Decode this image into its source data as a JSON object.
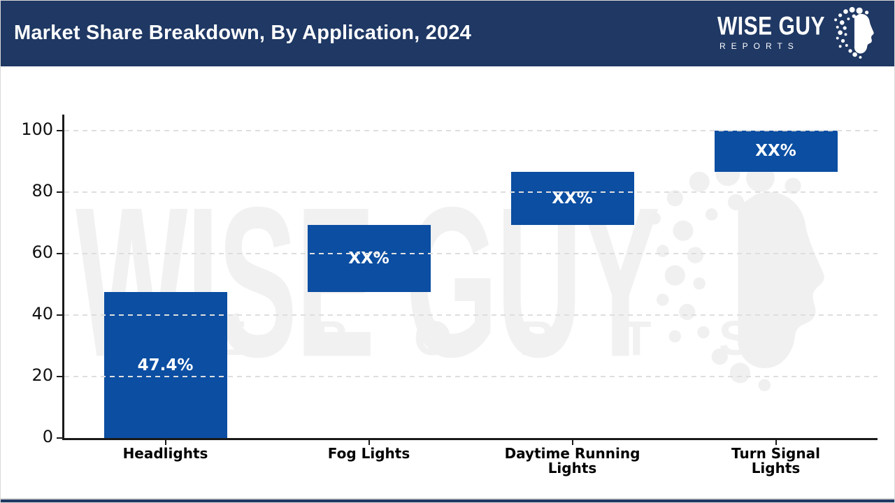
{
  "header": {
    "title": "Market Share Breakdown, By Application, 2024",
    "logo": {
      "name": "WISE GUY",
      "subname": "REPORTS"
    }
  },
  "watermark": {
    "name": "WISE GUY",
    "subname": "REPORTS"
  },
  "chart_data": {
    "type": "bar",
    "subtype": "floating-waterfall",
    "title": "Market Share Breakdown, By Application, 2024",
    "categories": [
      "Headlights",
      "Fog Lights",
      "Daytime Running Lights",
      "Turn Signal Lights"
    ],
    "bars": [
      {
        "category": "Headlights",
        "start": 0,
        "end": 47.4,
        "label": "47.4%"
      },
      {
        "category": "Fog Lights",
        "start": 47.4,
        "end": 69.4,
        "label": "XX%"
      },
      {
        "category": "Daytime Running Lights",
        "start": 69.4,
        "end": 86.6,
        "label": "XX%"
      },
      {
        "category": "Turn Signal Lights",
        "start": 86.6,
        "end": 100,
        "label": "XX%"
      }
    ],
    "xlabel": "",
    "ylabel": "",
    "ylim": [
      0,
      100
    ],
    "yticks": [
      0,
      20,
      40,
      60,
      80,
      100
    ],
    "grid": "horizontal-dashed",
    "legend_position": "none",
    "bar_color": "#0b4ea2",
    "bar_label_color": "#ffffff"
  },
  "colors": {
    "header_navy": "#1f3864",
    "bar_blue": "#0b4ea2",
    "gridline_gray": "#dedede",
    "axis_black": "#1a1a1a",
    "watermark_gray": "#f1f1f1"
  }
}
